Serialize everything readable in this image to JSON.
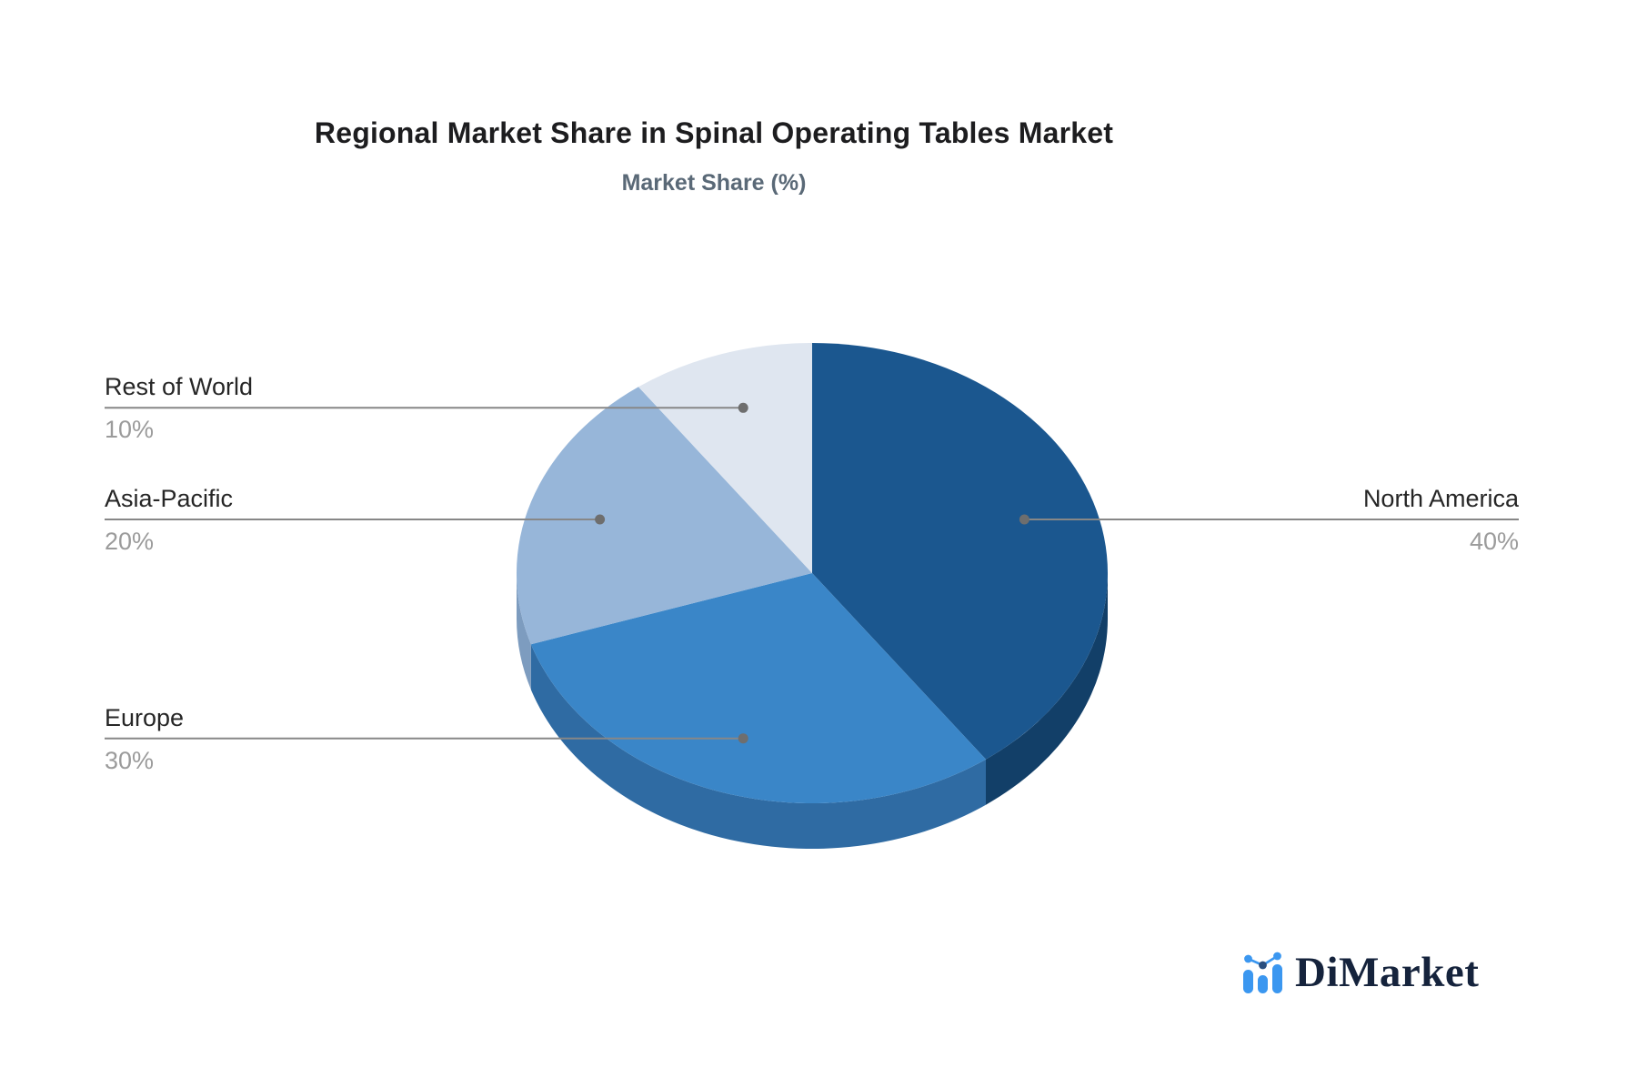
{
  "page": {
    "background": "#ffffff"
  },
  "header": {
    "title": "Regional Market Share in Spinal Operating Tables Market",
    "subtitle": "Market Share (%)"
  },
  "chart_data": {
    "type": "pie",
    "style": "3d",
    "title": "Regional Market Share in Spinal Operating Tables Market",
    "subtitle": "Market Share (%)",
    "unit": "%",
    "start_angle_deg": 0,
    "direction": "clockwise",
    "legend": "none",
    "slices": [
      {
        "label": "North America",
        "value": 40,
        "pct": "40%",
        "color": "#1b578f",
        "side_color": "#123f68",
        "label_side": "right"
      },
      {
        "label": "Europe",
        "value": 30,
        "pct": "30%",
        "color": "#3a86c8",
        "side_color": "#2f6ba3",
        "label_side": "left"
      },
      {
        "label": "Asia-Pacific",
        "value": 20,
        "pct": "20%",
        "color": "#97b6d9",
        "side_color": "#7d9cbf",
        "label_side": "left"
      },
      {
        "label": "Rest of World",
        "value": 10,
        "pct": "10%",
        "color": "#dfe6f0",
        "side_color": "#c2cfe0",
        "label_side": "left"
      }
    ],
    "leader_line_color": "#878787",
    "leader_dot_color": "#6e6e6e",
    "label_text_color": "#262626",
    "pct_text_color": "#9b9b9b"
  },
  "branding": {
    "name": "DiMarket",
    "icon": "bar-line-chart-icon",
    "text_color": "#15233c",
    "icon_color": "#3b97f0",
    "icon_mid_dot_color": "#2a4e7e"
  }
}
